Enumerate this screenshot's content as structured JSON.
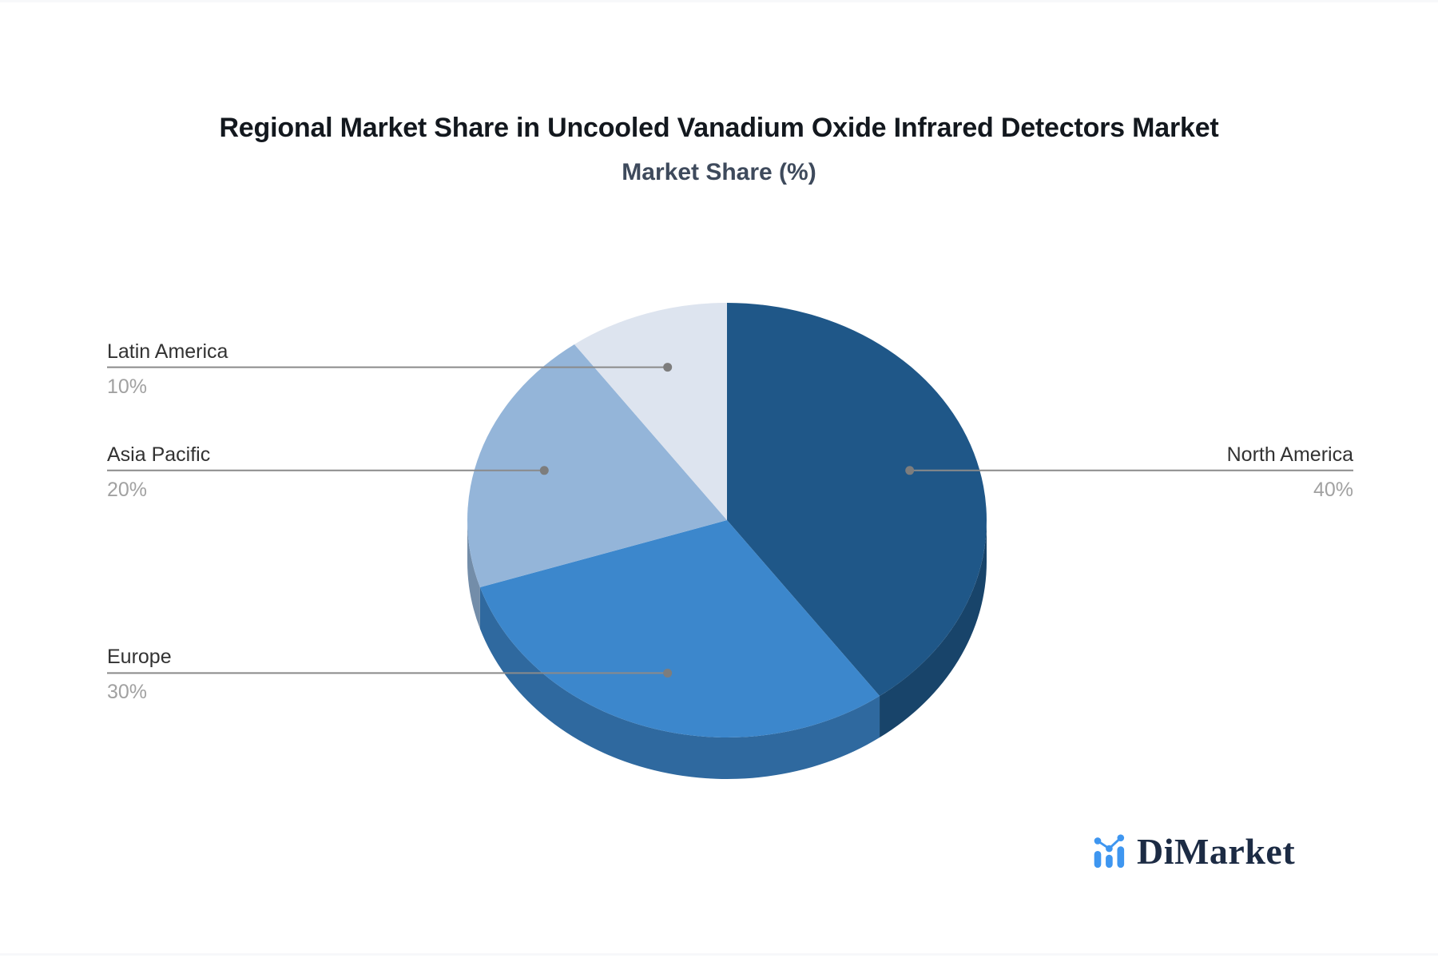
{
  "chart_data": {
    "type": "pie",
    "style": "3d",
    "title": "Regional Market Share in Uncooled Vanadium Oxide Infrared Detectors Market",
    "subtitle": "Market Share (%)",
    "unit": "%",
    "start_angle_deg": 0,
    "direction": "clockwise",
    "label_style": "callout-lines",
    "series": [
      {
        "name": "North America",
        "value": 40,
        "label": "40%",
        "color": "#1F5788"
      },
      {
        "name": "Europe",
        "value": 30,
        "label": "30%",
        "color": "#3C87CC"
      },
      {
        "name": "Asia Pacific",
        "value": 20,
        "label": "20%",
        "color": "#94B5D9"
      },
      {
        "name": "Latin America",
        "value": 10,
        "label": "10%",
        "color": "#DDE4EF"
      }
    ]
  },
  "watermark": {
    "brand": "DiMarket",
    "icon": "bar-line-chart-icon",
    "text_color": "#1C2B44",
    "icon_color": "#3E96F0"
  }
}
